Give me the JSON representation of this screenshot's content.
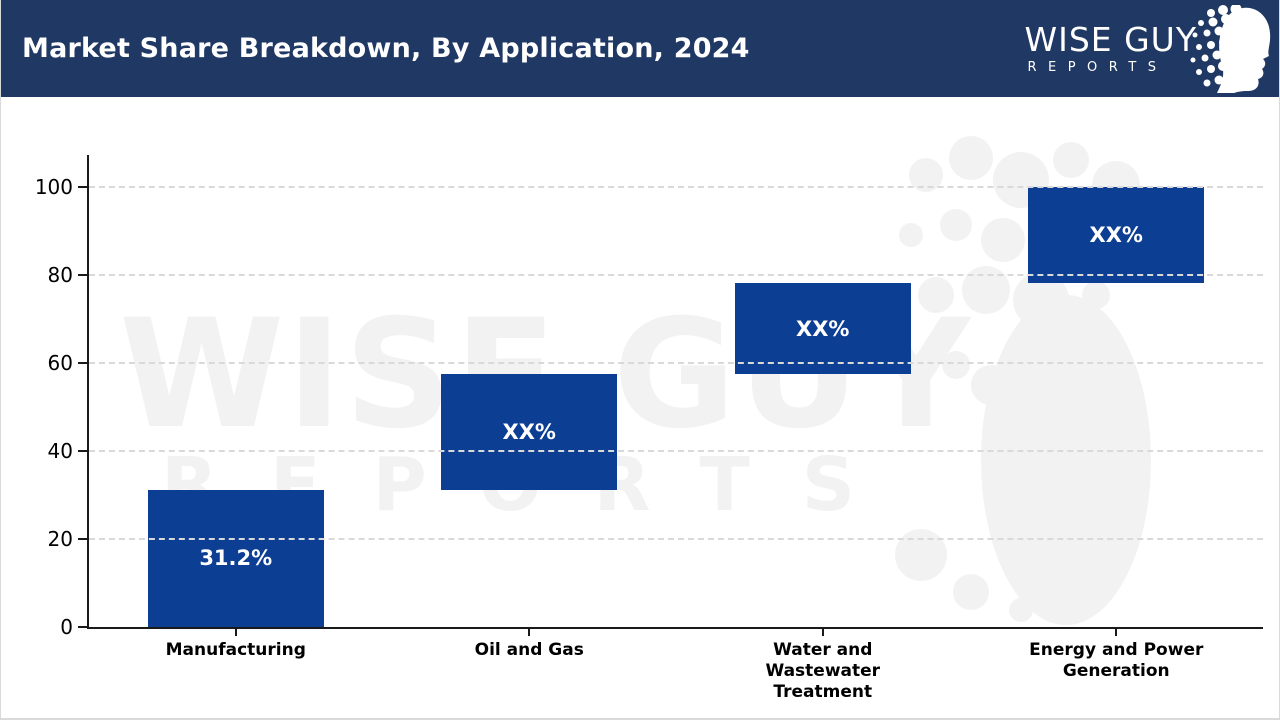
{
  "header": {
    "title": "Market Share Breakdown, By Application, 2024",
    "bg_color": "#1f3864",
    "logo": {
      "name": "WISE GUY",
      "sub": "REPORTS"
    }
  },
  "watermark": {
    "big": "WISE GUY",
    "sub": "REPORTS"
  },
  "icons": {
    "logo_head": "dotted-head-profile-icon",
    "watermark_head": "dotted-head-profile-icon"
  },
  "chart_data": {
    "type": "bar",
    "variant": "waterfall",
    "title": "Market Share Breakdown, By Application, 2024",
    "categories": [
      "Manufacturing",
      "Oil and Gas",
      "Water and\nWastewater\nTreatment",
      "Energy and Power\nGeneration"
    ],
    "segments": [
      {
        "category": "Manufacturing",
        "start": 0,
        "end": 31.2,
        "label": "31.2%"
      },
      {
        "category": "Oil and Gas",
        "start": 31.2,
        "end": 57.4,
        "label": "XX%"
      },
      {
        "category": "Water and Wastewater Treatment",
        "start": 57.4,
        "end": 78.2,
        "label": "XX%"
      },
      {
        "category": "Energy and Power Generation",
        "start": 78.2,
        "end": 100,
        "label": "XX%"
      }
    ],
    "ylim": [
      0,
      100
    ],
    "yticks": [
      0,
      20,
      40,
      60,
      80,
      100
    ],
    "grid": "dashed horizontal",
    "legend": "none",
    "bar_color": "#0c3e94",
    "bar_label_color": "#ffffff",
    "axis_color": "#1a1a1a",
    "grid_color": "#d9d9d9",
    "watermark_color": "#f2f2f2"
  }
}
